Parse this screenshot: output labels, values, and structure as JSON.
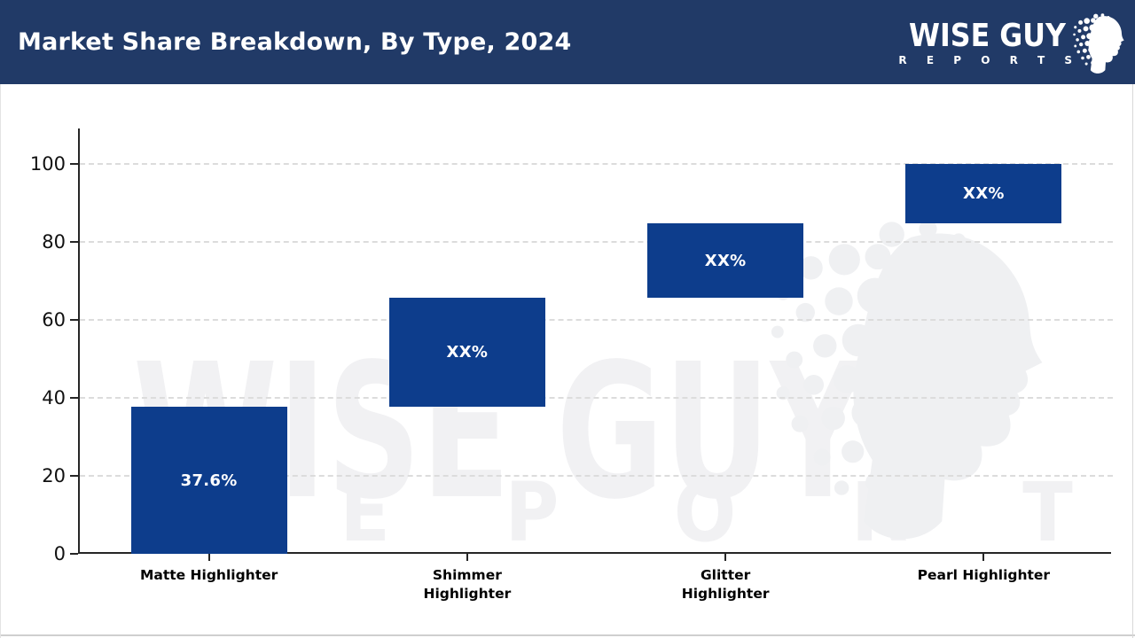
{
  "header": {
    "title": "Market Share Breakdown, By Type, 2024",
    "logo": {
      "line1": "WISE GUY",
      "line2": "R E P O R T S"
    }
  },
  "watermark": {
    "line1": "WISE GUY",
    "line2": "R E P O R T S"
  },
  "colors": {
    "header_bg": "#213a67",
    "bar": "#0d3d8c",
    "grid": "#dcdcdc",
    "spine": "#262626",
    "tick_label": "#111111",
    "bar_value_label": "#ffffff",
    "watermark": "#f1f1f3"
  },
  "chart_data": {
    "type": "bar",
    "subtype": "floating-stacked-percent",
    "title": "Market Share Breakdown, By Type, 2024",
    "categories": [
      "Matte Highlighter",
      "Shimmer Highlighter",
      "Glitter Highlighter",
      "Pearl Highlighter"
    ],
    "category_lines": [
      [
        "Matte Highlighter"
      ],
      [
        "Shimmer",
        "Highlighter"
      ],
      [
        "Glitter",
        "Highlighter"
      ],
      [
        "Pearl Highlighter"
      ]
    ],
    "segments": [
      {
        "category": "Matte Highlighter",
        "start": 0,
        "end": 37.6,
        "value": 37.6,
        "label": "37.6%"
      },
      {
        "category": "Shimmer Highlighter",
        "start": 37.6,
        "end": 65.6,
        "value": 28.0,
        "label": "XX%"
      },
      {
        "category": "Glitter Highlighter",
        "start": 65.6,
        "end": 84.6,
        "value": 19.0,
        "label": "XX%"
      },
      {
        "category": "Pearl Highlighter",
        "start": 84.6,
        "end": 100,
        "value": 15.4,
        "label": "XX%"
      }
    ],
    "yticks": [
      0,
      20,
      40,
      60,
      80,
      100
    ],
    "ylim": [
      0,
      109
    ],
    "xlabel": "",
    "ylabel": "",
    "grid": "dashed-horizontal",
    "legend": null
  }
}
